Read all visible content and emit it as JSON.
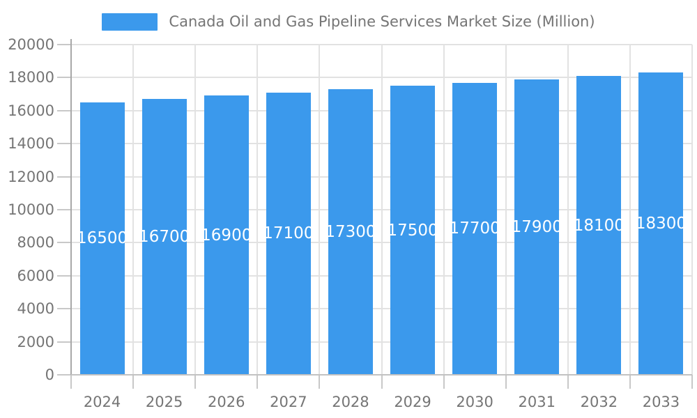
{
  "legend": {
    "label": "Canada Oil and Gas Pipeline Services Market Size (Million)"
  },
  "chart_data": {
    "type": "bar",
    "title": "Canada Oil and Gas Pipeline Services Market Size (Million)",
    "series_name": "Canada Oil and Gas Pipeline Services Market Size (Million)",
    "categories": [
      "2024",
      "2025",
      "2026",
      "2027",
      "2028",
      "2029",
      "2030",
      "2031",
      "2032",
      "2033"
    ],
    "values": [
      16500,
      16700,
      16900,
      17100,
      17300,
      17500,
      17700,
      17900,
      18100,
      18300
    ],
    "bar_value_labels": [
      "16500",
      "16700",
      "16900",
      "17100",
      "17300",
      "17500",
      "17700",
      "17900",
      "18100",
      "18300"
    ],
    "xlabel": "",
    "ylabel": "",
    "ylim": [
      0,
      20000
    ],
    "yticks": [
      0,
      2000,
      4000,
      6000,
      8000,
      10000,
      12000,
      14000,
      16000,
      18000,
      20000
    ],
    "grid": true,
    "legend_position": "top",
    "value_label_position": "inside-center",
    "colors": {
      "bar": "#3B99EC",
      "bar_label": "#FFFFFF",
      "axis_text": "#757575",
      "legend_text": "#757575",
      "gridline": "#E2E2E2",
      "y_axis_line": "#A8A8A8",
      "x_axis_line": "#C2C2C2",
      "tick": "#C8C8C8",
      "background": "#FFFFFF"
    }
  }
}
